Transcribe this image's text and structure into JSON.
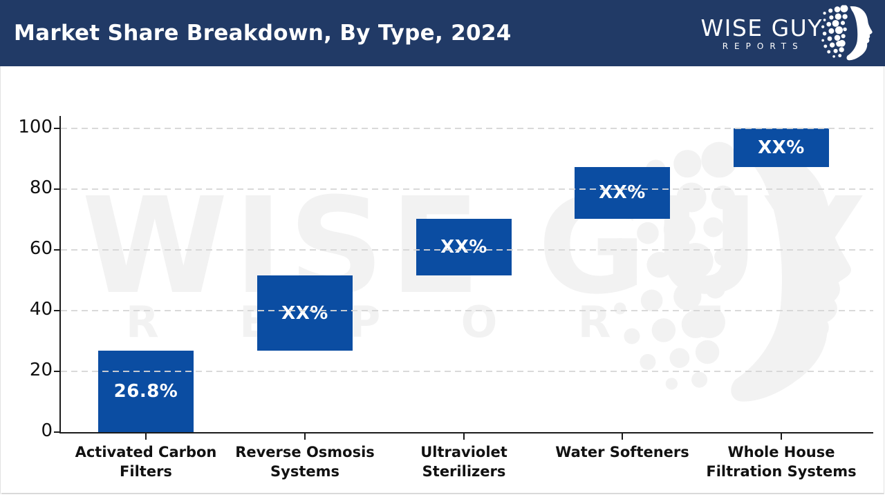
{
  "header": {
    "title": "Market Share Breakdown, By Type, 2024",
    "bg_color": "#213a66",
    "logo": {
      "word": "WISE GUY",
      "sub": "REPORTS"
    }
  },
  "watermark": {
    "word": "WISE GUY",
    "sub": "REPORTS"
  },
  "chart_data": {
    "type": "bar",
    "subtype": "waterfall-floating-bars",
    "title": "Market Share Breakdown, By Type, 2024",
    "xlabel": "",
    "ylabel": "",
    "ylim": [
      0,
      104
    ],
    "yticks": [
      0,
      20,
      40,
      60,
      80,
      100
    ],
    "grid": "horizontal-dashed",
    "legend": "none",
    "bar_color": "#0b4da2",
    "label_color": "#ffffff",
    "grid_color": "#d9d9d9",
    "axis_color": "#1a1a1a",
    "categories": [
      "Activated Carbon Filters",
      "Reverse Osmosis Systems",
      "Ultraviolet Sterilizers",
      "Water Softeners",
      "Whole House Filtration Systems"
    ],
    "segments": [
      {
        "category": "Activated Carbon Filters",
        "lines": [
          "Activated Carbon",
          "Filters"
        ],
        "start": 0,
        "end": 26.8,
        "label": "26.8%"
      },
      {
        "category": "Reverse Osmosis Systems",
        "lines": [
          "Reverse Osmosis",
          "Systems"
        ],
        "start": 26.8,
        "end": 51.5,
        "label": "XX%"
      },
      {
        "category": "Ultraviolet Sterilizers",
        "lines": [
          "Ultraviolet",
          "Sterilizers"
        ],
        "start": 51.5,
        "end": 70.3,
        "label": "XX%"
      },
      {
        "category": "Water Softeners",
        "lines": [
          "Water Softeners"
        ],
        "start": 70.3,
        "end": 87.3,
        "label": "XX%"
      },
      {
        "category": "Whole House Filtration Systems",
        "lines": [
          "Whole House",
          "Filtration Systems"
        ],
        "start": 87.3,
        "end": 100,
        "label": "XX%"
      }
    ]
  }
}
